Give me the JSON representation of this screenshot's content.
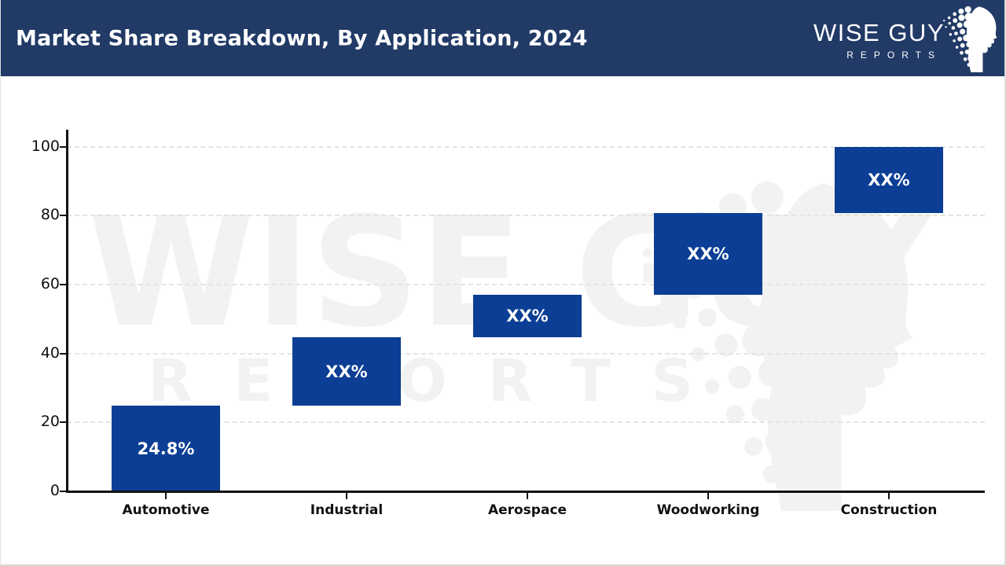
{
  "header": {
    "title": "Market Share Breakdown, By Application, 2024",
    "logo": {
      "name": "WISE GUY",
      "sub": "REPORTS"
    }
  },
  "watermark": {
    "line1": "WISE GUY",
    "line2": "REPORTS"
  },
  "colors": {
    "header_bg": "#213a66",
    "bar": "#0b3e94",
    "axis": "#111111",
    "gridline": "#e3e3e3",
    "watermark": "#f2f2f2",
    "bar_label": "#ffffff"
  },
  "chart_data": {
    "type": "bar",
    "subtype": "waterfall",
    "title": "Market Share Breakdown, By Application, 2024",
    "xlabel": "",
    "ylabel": "",
    "categories": [
      "Automotive",
      "Industrial",
      "Aerospace",
      "Woodworking",
      "Construction"
    ],
    "segments": [
      {
        "category": "Automotive",
        "start": 0,
        "end": 24.8,
        "label": "24.8%"
      },
      {
        "category": "Industrial",
        "start": 24.8,
        "end": 44.6,
        "label": "XX%"
      },
      {
        "category": "Aerospace",
        "start": 44.6,
        "end": 56.9,
        "label": "XX%"
      },
      {
        "category": "Woodworking",
        "start": 56.9,
        "end": 80.7,
        "label": "XX%"
      },
      {
        "category": "Construction",
        "start": 80.7,
        "end": 100,
        "label": "XX%"
      }
    ],
    "yticks": [
      0,
      20,
      40,
      60,
      80,
      100
    ],
    "ylim": [
      0,
      105
    ],
    "grid": "dashed-horizontal",
    "legend": "none",
    "bar_color": "#0b3e94"
  }
}
